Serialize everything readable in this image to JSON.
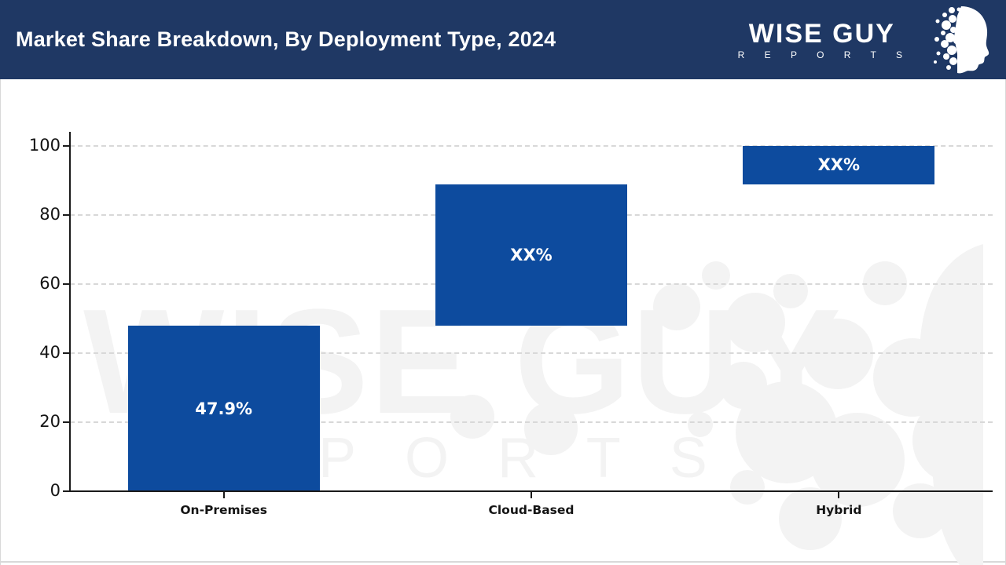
{
  "header": {
    "title": "Market Share Breakdown, By Deployment Type, 2024",
    "bg_color": "#1f3864",
    "logo": {
      "line1": "WISE GUY",
      "line2": "R E P O R T S"
    }
  },
  "watermark": {
    "line1": "WISE GUY",
    "line2": "REPORTS"
  },
  "chart_data": {
    "type": "bar",
    "subtype": "waterfall",
    "title": "Market Share Breakdown, By Deployment Type, 2024",
    "categories": [
      "On-Premises",
      "Cloud-Based",
      "Hybrid"
    ],
    "segments": [
      {
        "category": "On-Premises",
        "start": 0,
        "end": 47.9,
        "label": "47.9%"
      },
      {
        "category": "Cloud-Based",
        "start": 47.9,
        "end": 88.9,
        "label": "XX%"
      },
      {
        "category": "Hybrid",
        "start": 88.9,
        "end": 100,
        "label": "XX%"
      }
    ],
    "xlabel": "",
    "ylabel": "",
    "ylim": [
      0,
      100
    ],
    "yticks": [
      0,
      20,
      40,
      60,
      80,
      100
    ],
    "grid": "horizontal-dashed",
    "legend": "none",
    "bar_color": "#0d4b9e",
    "bar_label_color": "#ffffff",
    "grid_color": "#d8d8d8",
    "axis_color": "#1a1a1a"
  }
}
